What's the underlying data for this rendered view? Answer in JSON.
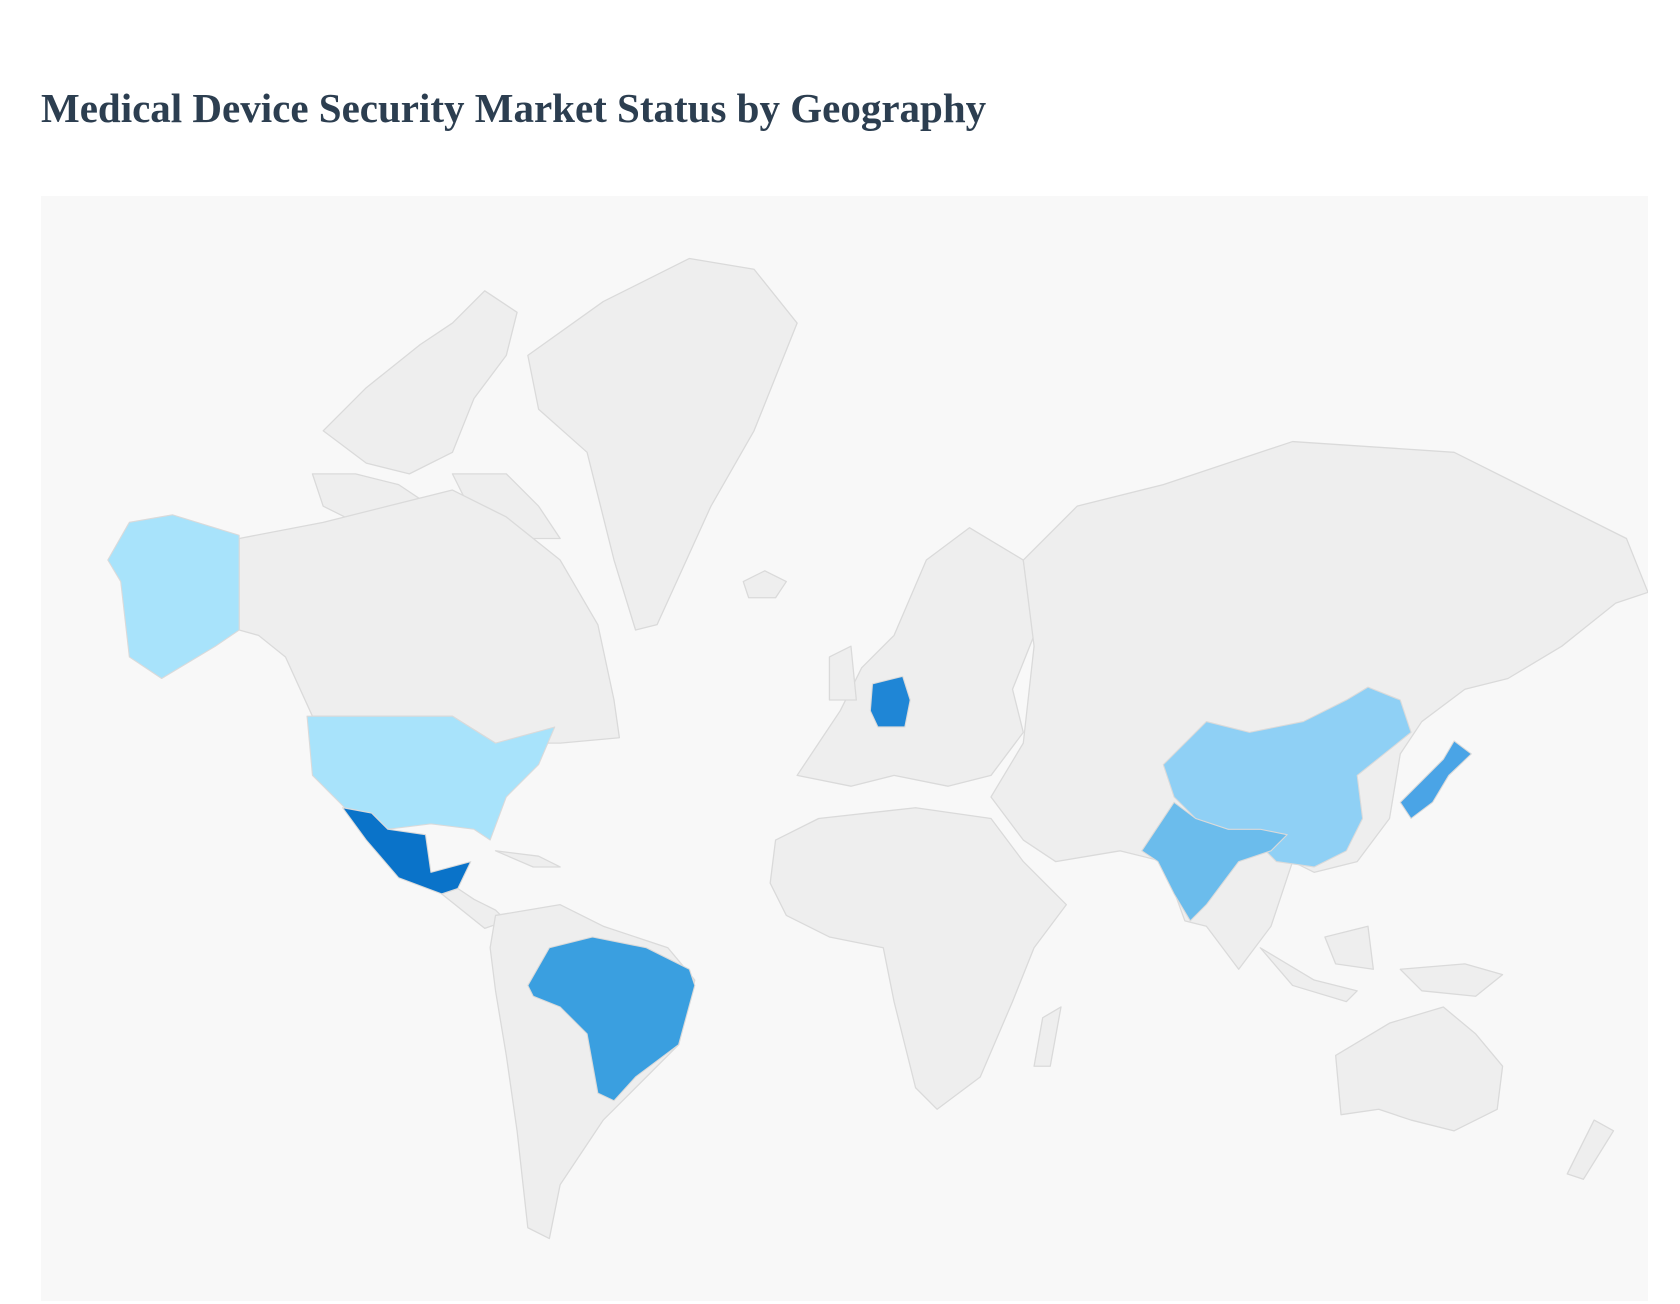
{
  "header": {
    "title": "Medical Device Security Market Status by Geography"
  }
}
